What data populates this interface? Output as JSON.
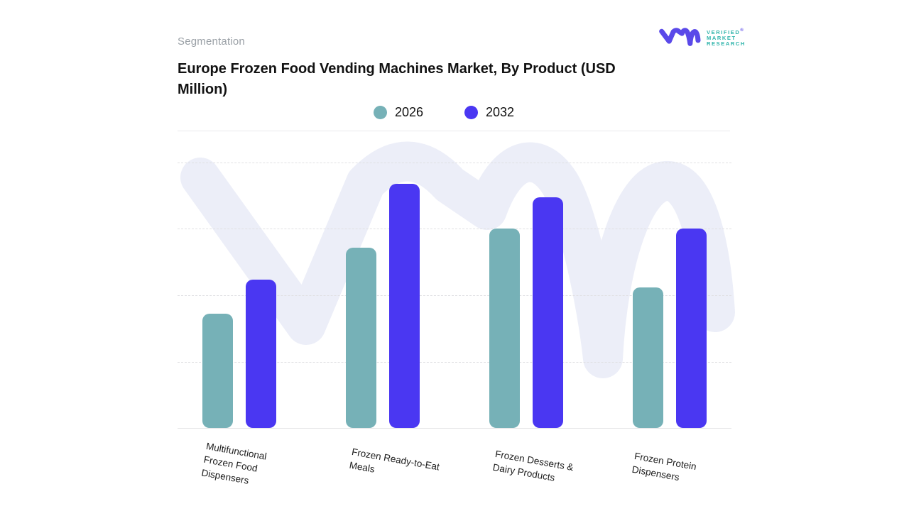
{
  "header": {
    "eyebrow": "Segmentation",
    "title": "Europe Frozen Food Vending Machines Market, By Product (USD Million)",
    "logo": {
      "lines": [
        "VERIFIED",
        "MARKET",
        "RESEARCH"
      ],
      "registered": "®",
      "mark_color": "#5A49E9",
      "text_color": "#2FB4AB"
    }
  },
  "brand": {
    "watermark_color": "#ECEEF8",
    "series_2026_color": "#76B1B7",
    "series_2032_color": "#4A37F2"
  },
  "legend": [
    {
      "label": "2026",
      "color": "#76B1B7"
    },
    {
      "label": "2032",
      "color": "#4A37F2"
    }
  ],
  "chart_data": {
    "type": "bar",
    "title": "Europe Frozen Food Vending Machines Market, By Product (USD Million)",
    "ylabel": "USD Million",
    "xlabel": "",
    "categories": [
      "Multifunctional Frozen Food Dispensers",
      "Frozen Ready-to-Eat Meals",
      "Frozen Desserts & Dairy Products",
      "Frozen Protein Dispensers"
    ],
    "category_label_lines": [
      [
        "Multifunctional",
        "Frozen Food",
        "Dispensers"
      ],
      [
        "Frozen Ready-to-Eat",
        "Meals"
      ],
      [
        "Frozen Desserts &",
        "Dairy Products"
      ],
      [
        "Frozen Protein",
        "Dispensers"
      ]
    ],
    "series": [
      {
        "name": "2026",
        "color": "#76B1B7",
        "values": [
          43,
          68,
          75,
          53
        ]
      },
      {
        "name": "2032",
        "color": "#4A37F2",
        "values": [
          56,
          92,
          87,
          75
        ]
      }
    ],
    "y_axis": {
      "tick_labels_visible": false,
      "note": "no numeric tick labels shown in chart; values are relative bar heights on a 0-100 scale",
      "ylim": [
        0,
        100
      ],
      "gridlines": "horizontal dashed"
    },
    "legend_position": "top-center"
  }
}
